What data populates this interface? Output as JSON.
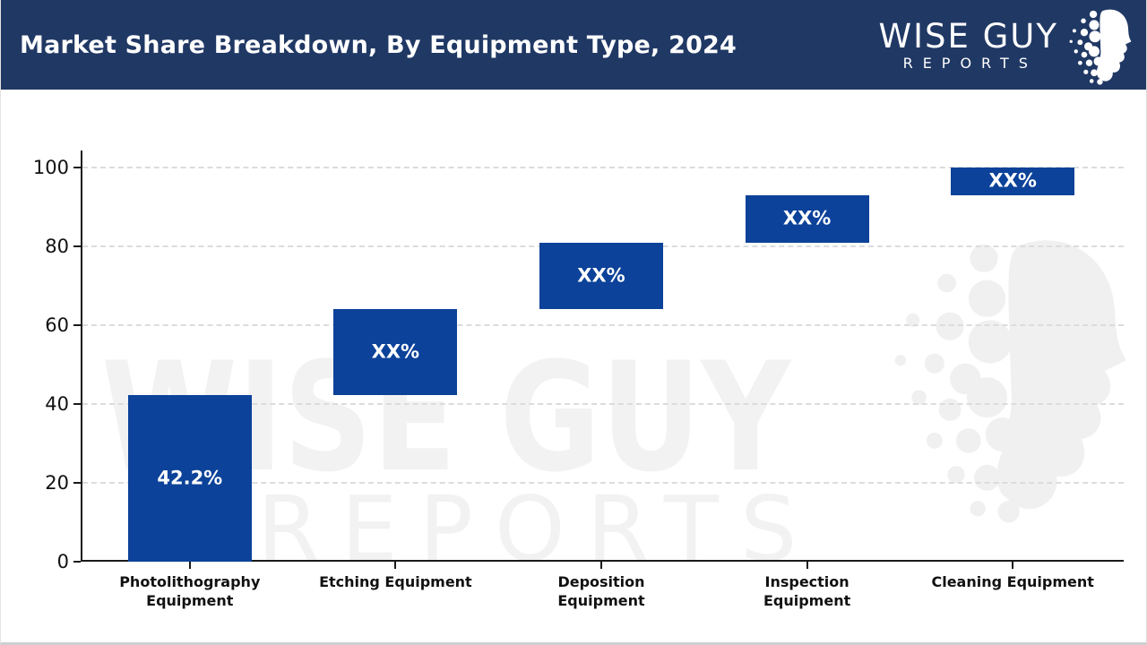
{
  "header": {
    "title": "Market Share Breakdown, By Equipment Type, 2024",
    "logo": {
      "line1": "WISE GUY",
      "line2": "REPORTS"
    }
  },
  "watermark": {
    "line1": "WISE GUY",
    "line2": "REPORTS"
  },
  "colors": {
    "header_bg": "#203864",
    "bar": "#0c4299",
    "bar_label": "#ffffff",
    "grid": "#dcdcdc",
    "axis": "#1a1a1a",
    "watermark": "#f2f2f2"
  },
  "chart_data": {
    "type": "bar",
    "subtype": "waterfall",
    "title": "Market Share Breakdown, By Equipment Type, 2024",
    "categories": [
      "Photolithography\nEquipment",
      "Etching Equipment",
      "Deposition\nEquipment",
      "Inspection\nEquipment",
      "Cleaning Equipment"
    ],
    "series": [
      {
        "name": "Market Share",
        "segments": [
          {
            "category": "Photolithography Equipment",
            "start": 0,
            "end": 42.2,
            "label": "42.2%"
          },
          {
            "category": "Etching Equipment",
            "start": 42.2,
            "end": 64,
            "label": "XX%"
          },
          {
            "category": "Deposition Equipment",
            "start": 64,
            "end": 81,
            "label": "XX%"
          },
          {
            "category": "Inspection Equipment",
            "start": 81,
            "end": 93,
            "label": "XX%"
          },
          {
            "category": "Cleaning Equipment",
            "start": 93,
            "end": 100,
            "label": "XX%"
          }
        ]
      }
    ],
    "xlabel": "",
    "ylabel": "",
    "ylim": [
      0,
      105
    ],
    "yticks": [
      0,
      20,
      40,
      60,
      80,
      100
    ],
    "grid": "horizontal-dashed",
    "legend": "none"
  }
}
